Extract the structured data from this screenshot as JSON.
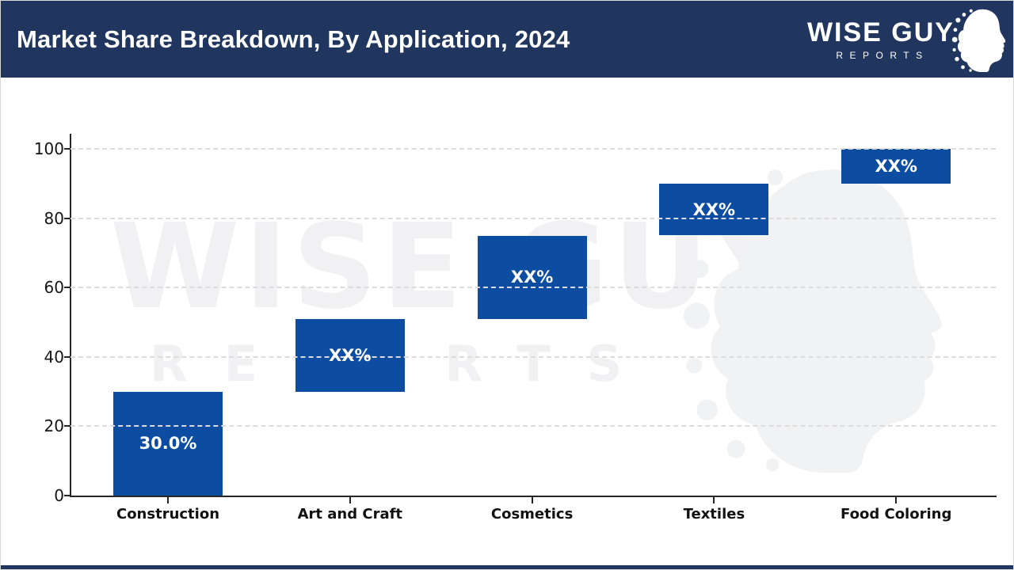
{
  "header": {
    "title": "Market Share Breakdown, By Application, 2024",
    "logo": {
      "line1": "WISE GUY",
      "line2": "REPORTS"
    }
  },
  "watermark": {
    "line1": "WISE GUY",
    "line2": "REPORTS"
  },
  "colors": {
    "header_bg": "#21365f",
    "bar_blue": "#0c4da2",
    "grid": "#dcdcdc",
    "axis": "#262626",
    "bar_label": "#ffffff"
  },
  "chart_data": {
    "type": "bar",
    "subtype": "waterfall-floating-bars",
    "title": "Market Share Breakdown, By Application, 2024",
    "categories": [
      "Construction",
      "Art and Craft",
      "Cosmetics",
      "Textiles",
      "Food Coloring"
    ],
    "series": [
      {
        "name": "Market share (%)",
        "segments": [
          {
            "category": "Construction",
            "start": 0,
            "end": 30,
            "label": "30.0%"
          },
          {
            "category": "Art and Craft",
            "start": 30,
            "end": 51,
            "label": "XX%"
          },
          {
            "category": "Cosmetics",
            "start": 51,
            "end": 75,
            "label": "XX%"
          },
          {
            "category": "Textiles",
            "start": 75,
            "end": 90,
            "label": "XX%"
          },
          {
            "category": "Food Coloring",
            "start": 90,
            "end": 100,
            "label": "XX%"
          }
        ]
      }
    ],
    "xlabel": "",
    "ylabel": "",
    "ylim": [
      0,
      100
    ],
    "yticks": [
      0,
      20,
      40,
      60,
      80,
      100
    ],
    "grid": "horizontal dashed, drawn above bars",
    "legend": "none",
    "bar_color": "#0c4da2",
    "label_color": "#ffffff"
  }
}
